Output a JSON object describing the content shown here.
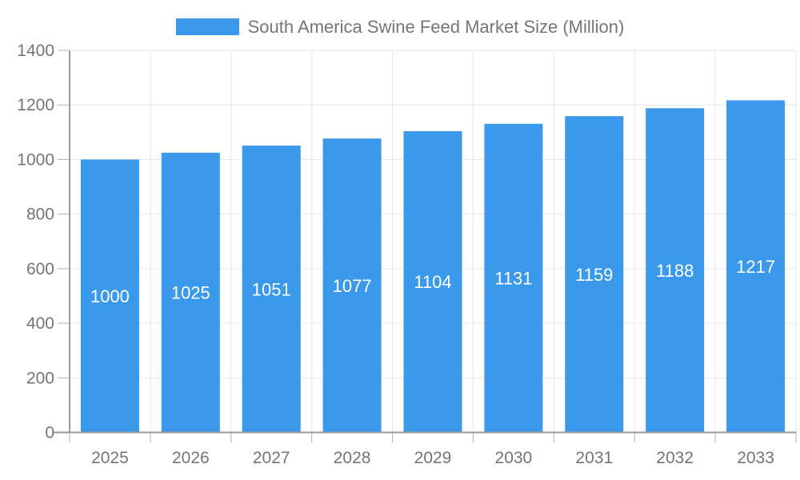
{
  "legend": {
    "items": [
      {
        "label": "South America Swine Feed Market Size (Million)",
        "color": "#3b99ec"
      }
    ]
  },
  "chart_data": {
    "type": "bar",
    "title": "South America Swine Feed Market Size (Million)",
    "categories": [
      "2025",
      "2026",
      "2027",
      "2028",
      "2029",
      "2030",
      "2031",
      "2032",
      "2033"
    ],
    "series": [
      {
        "name": "South America Swine Feed Market Size (Million)",
        "values": [
          1000,
          1025,
          1051,
          1077,
          1104,
          1131,
          1159,
          1188,
          1217
        ]
      }
    ],
    "xlabel": "",
    "ylabel": "",
    "ylim": [
      0,
      1400
    ],
    "ytick_step": 200,
    "yticks": [
      0,
      200,
      400,
      600,
      800,
      1000,
      1200,
      1400
    ],
    "grid": true,
    "legend_position": "top",
    "value_label_position": "inside-center",
    "colors": {
      "bar": "#3b99ec",
      "value_label": "#ffffff",
      "axis_text": "#757575",
      "axis_line": "#9a9a9a",
      "tick_line": "#b0b0b0",
      "gridline": "#e6e6e6",
      "background": "#ffffff"
    }
  }
}
